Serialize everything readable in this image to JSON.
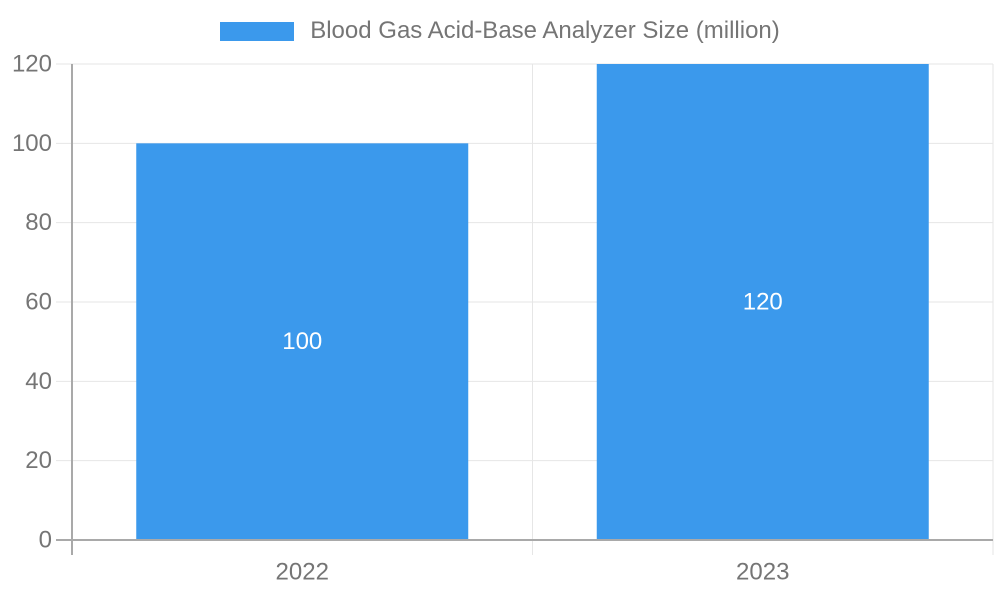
{
  "legend": {
    "label": "Blood Gas Acid-Base Analyzer Size (million)"
  },
  "chart_data": {
    "type": "bar",
    "title": "Blood Gas Acid-Base Analyzer Size (million)",
    "categories": [
      "2022",
      "2023"
    ],
    "series": [
      {
        "name": "Blood Gas Acid-Base Analyzer Size (million)",
        "values": [
          100,
          120
        ]
      }
    ],
    "value_labels": [
      "100",
      "120"
    ],
    "y_ticks": [
      0,
      20,
      40,
      60,
      80,
      100,
      120
    ],
    "ylim": [
      0,
      120
    ],
    "xlabel": "",
    "ylabel": "",
    "grid": true,
    "legend_position": "top-center",
    "colors": {
      "bar": "#3b99ec",
      "tick_label": "#757575",
      "grid_line": "#e6e6e6",
      "axis_line": "#a9a9a9",
      "value_label": "#ffffff",
      "background": "#ffffff"
    }
  }
}
